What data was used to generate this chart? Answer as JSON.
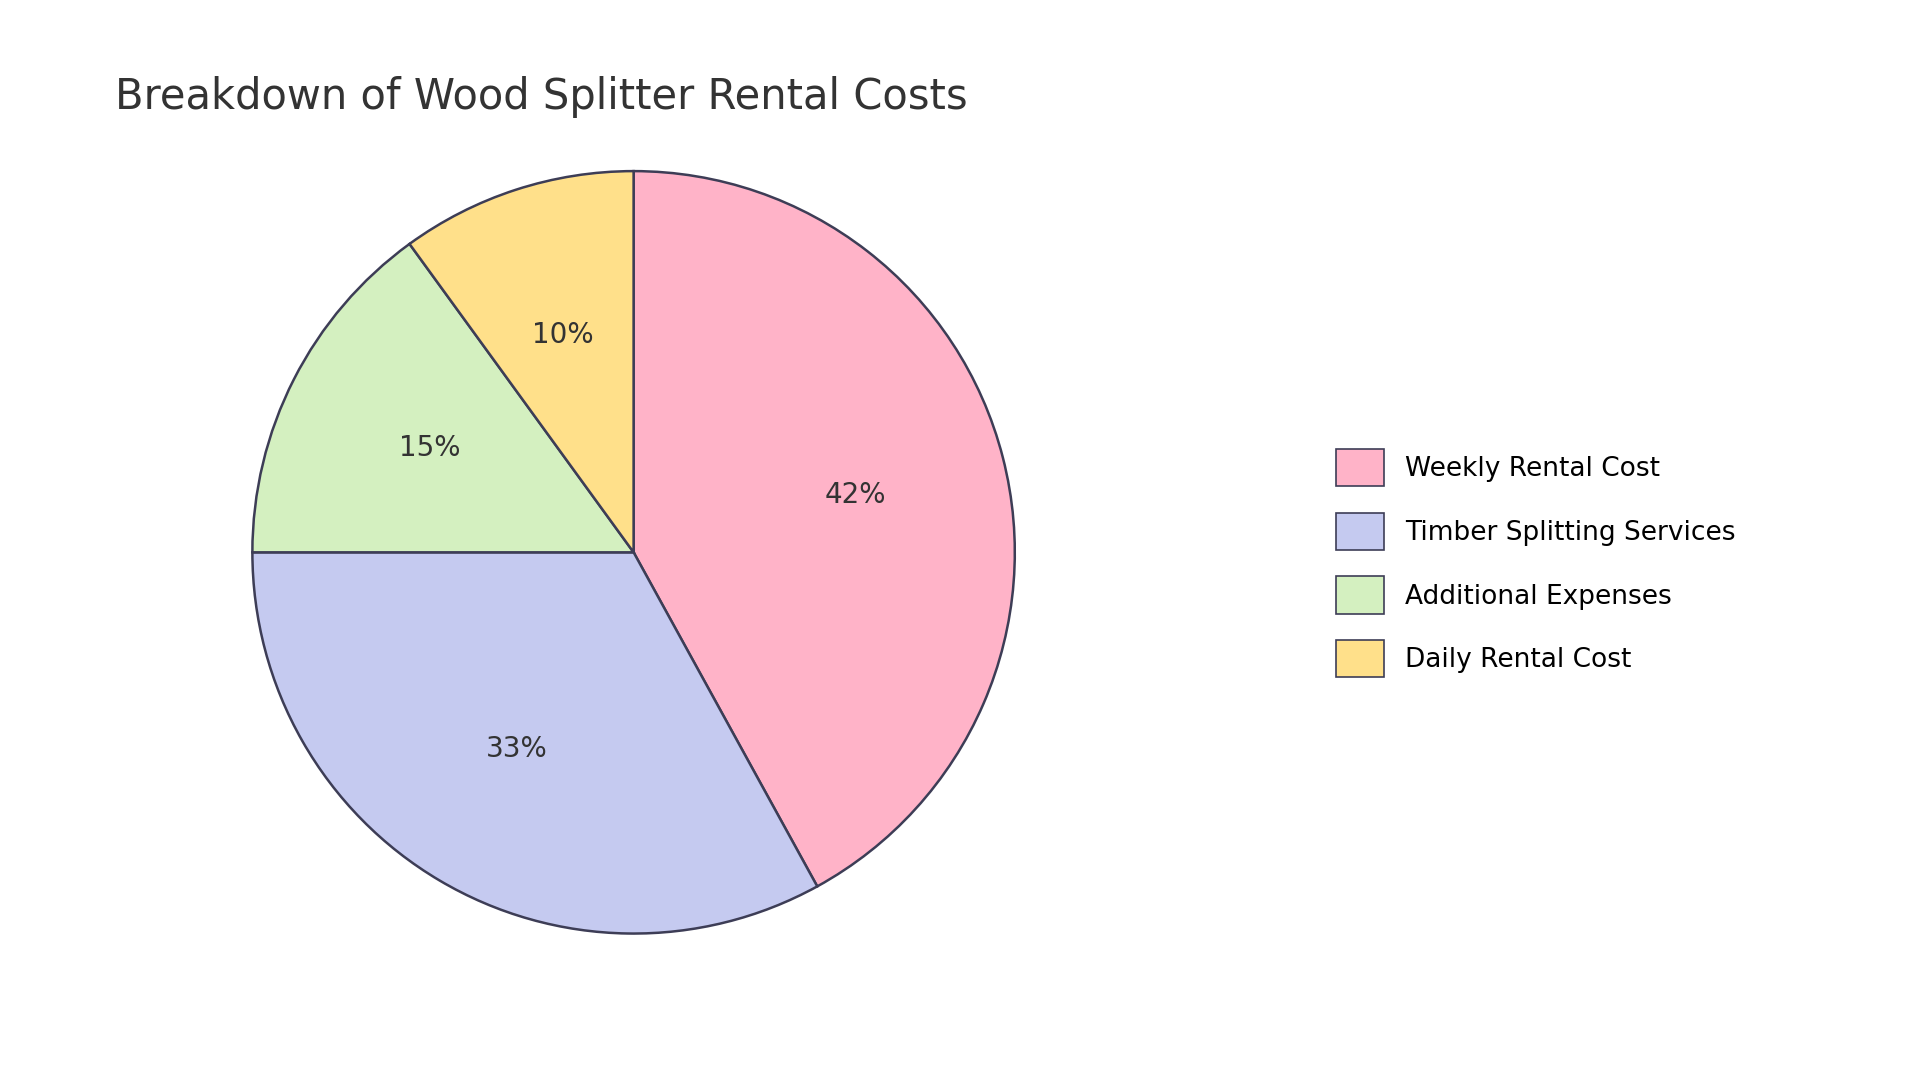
{
  "title": "Breakdown of Wood Splitter Rental Costs",
  "labels": [
    "Weekly Rental Cost",
    "Timber Splitting Services",
    "Additional Expenses",
    "Daily Rental Cost"
  ],
  "values": [
    42,
    33,
    15,
    10
  ],
  "colors": [
    "#FFB3C8",
    "#C5CAF0",
    "#D4F0C0",
    "#FFE08A"
  ],
  "edge_color": "#3D3D56",
  "edge_width": 1.8,
  "pct_labels": [
    "42%",
    "33%",
    "15%",
    "10%"
  ],
  "title_fontsize": 30,
  "pct_fontsize": 20,
  "legend_fontsize": 19,
  "background_color": "#FFFFFF",
  "start_angle": 90
}
